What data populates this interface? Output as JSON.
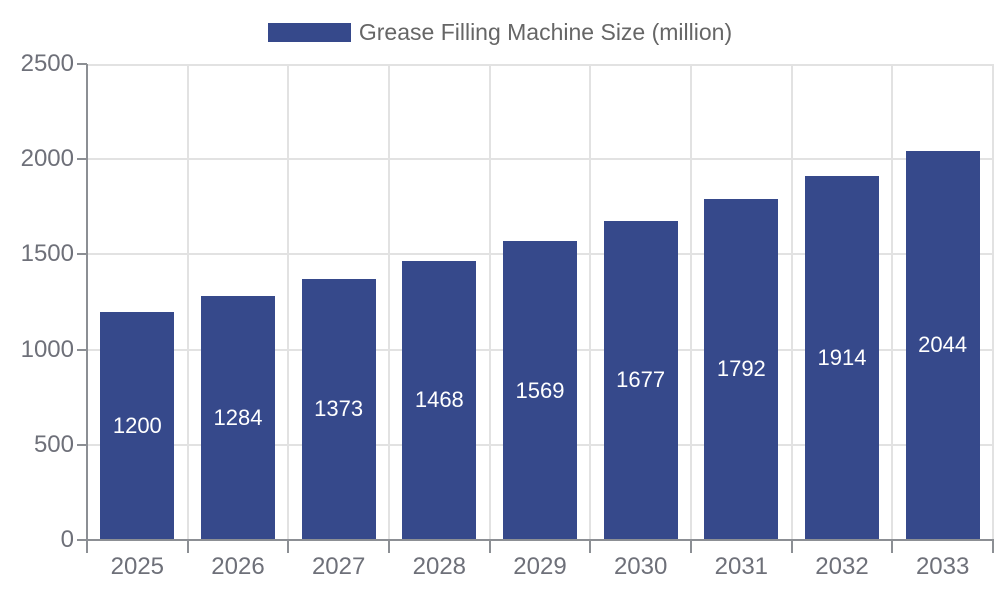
{
  "chart_data": {
    "type": "bar",
    "title": "",
    "legend_position": "top-center",
    "categories": [
      "2025",
      "2026",
      "2027",
      "2028",
      "2029",
      "2030",
      "2031",
      "2032",
      "2033"
    ],
    "series": [
      {
        "name": "Grease Filling Machine Size (million)",
        "values": [
          1200,
          1284,
          1373,
          1468,
          1569,
          1677,
          1792,
          1914,
          2044
        ],
        "color": "#36498B"
      }
    ],
    "xlabel": "",
    "ylabel": "",
    "ylim": [
      0,
      2500
    ],
    "yticks": [
      0,
      500,
      1000,
      1500,
      2000,
      2500
    ],
    "grid": true,
    "value_labels": "inside-center"
  },
  "colors": {
    "bar": "#36498B",
    "axis_line": "#8C8F94",
    "tick_label": "#6E7079",
    "legend_text": "#666666",
    "gridline": "#E2E2E2",
    "value_label": "#FFFFFF",
    "background": "#FFFFFF"
  }
}
